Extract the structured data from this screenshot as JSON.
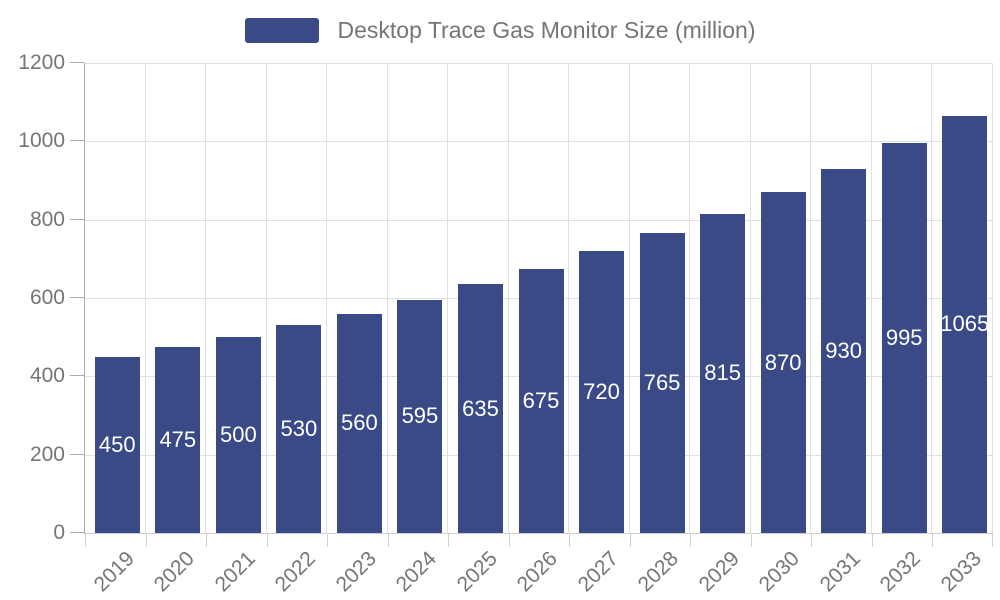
{
  "legend": {
    "label": "Desktop Trace Gas Monitor Size (million)"
  },
  "colors": {
    "bar": "#3A4A87",
    "grid": "#E0E0E0",
    "axis_y": "#ABABAB",
    "axis_x": "#CFCFCF",
    "text": "#757575",
    "bar_label": "#FFFFFF",
    "background": "#FFFFFF"
  },
  "chart_data": {
    "type": "bar",
    "title": "Desktop Trace Gas Monitor Size (million)",
    "categories": [
      "2019",
      "2020",
      "2021",
      "2022",
      "2023",
      "2024",
      "2025",
      "2026",
      "2027",
      "2028",
      "2029",
      "2030",
      "2031",
      "2032",
      "2033"
    ],
    "values": [
      450,
      475,
      500,
      530,
      560,
      595,
      635,
      675,
      720,
      765,
      815,
      870,
      930,
      995,
      1065
    ],
    "xlabel": "",
    "ylabel": "",
    "ylim": [
      0,
      1200
    ],
    "ytick_step": 200,
    "grid": true,
    "legend_position": "top-center",
    "bar_label_position": "inside-center",
    "x_label_rotation": 45
  }
}
